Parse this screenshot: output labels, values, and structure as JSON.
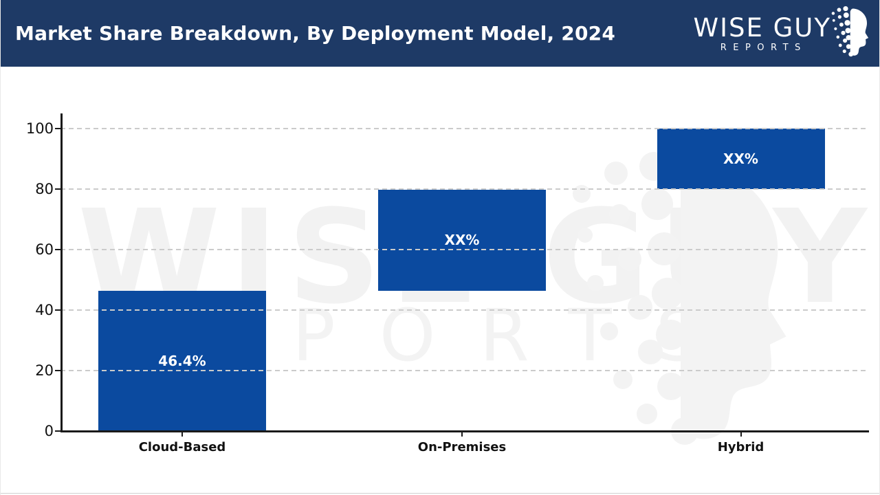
{
  "header": {
    "title": "Market Share Breakdown, By Deployment Model, 2024",
    "logo": {
      "line1": "WISE GUY",
      "line2": "REPORTS"
    },
    "bg_color": "#1e3a66"
  },
  "watermark": {
    "line1": "WISE GUY",
    "line2": "REPORTS"
  },
  "chart_data": {
    "type": "bar",
    "subtype": "waterfall",
    "title": "Market Share Breakdown, By Deployment Model, 2024",
    "categories": [
      "Cloud-Based",
      "On-Premises",
      "Hybrid"
    ],
    "segments": [
      {
        "category": "Cloud-Based",
        "start": 0,
        "end": 46.4,
        "label": "46.4%"
      },
      {
        "category": "On-Premises",
        "start": 46.4,
        "end": 79.6,
        "label": "XX%"
      },
      {
        "category": "Hybrid",
        "start": 80,
        "end": 100,
        "label": "XX%"
      }
    ],
    "yticks": [
      0,
      20,
      40,
      60,
      80,
      100
    ],
    "ylim": [
      0,
      100
    ],
    "xlabel": "",
    "ylabel": "",
    "legend": "none",
    "grid": "horizontal-dashed",
    "bar_color": "#0b4a9f",
    "label_color": "#ffffff"
  }
}
